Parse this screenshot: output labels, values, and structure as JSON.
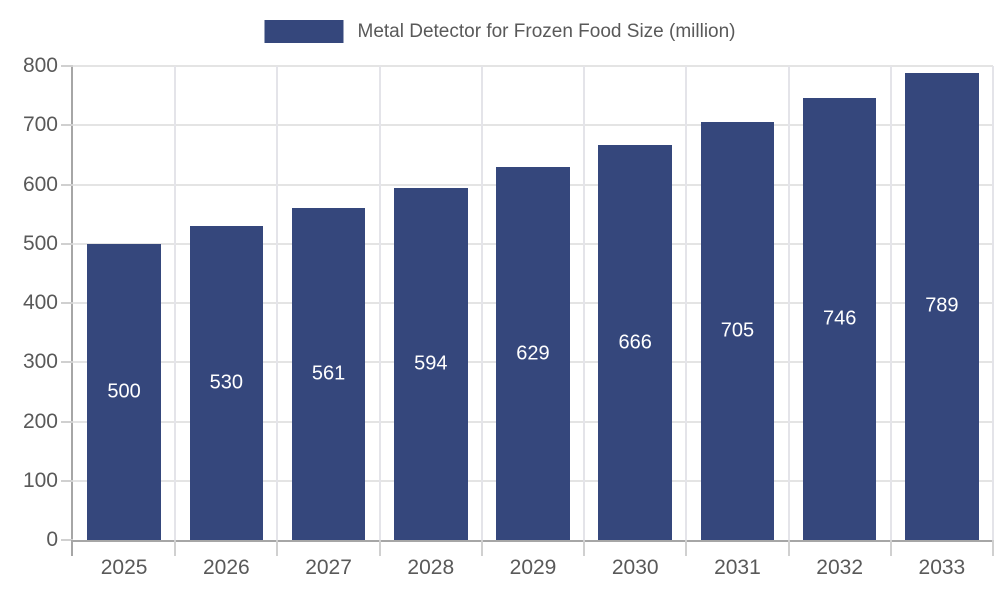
{
  "legend": {
    "label": "Metal Detector for Frozen Food Size (million)"
  },
  "chart_data": {
    "type": "bar",
    "title": "Metal Detector for Frozen Food Size (million)",
    "categories": [
      "2025",
      "2026",
      "2027",
      "2028",
      "2029",
      "2030",
      "2031",
      "2032",
      "2033"
    ],
    "values": [
      500,
      530,
      561,
      594,
      629,
      666,
      705,
      746,
      789
    ],
    "xlabel": "",
    "ylabel": "",
    "ylim": [
      0,
      800
    ],
    "yticks": [
      0,
      100,
      200,
      300,
      400,
      500,
      600,
      700,
      800
    ],
    "grid": true,
    "legend_position": "top-center",
    "value_labels": "centered-inside-bars",
    "colors": {
      "bar": "#35477C",
      "value_text": "#ffffff",
      "axis_text": "#595959",
      "axis_line": "#a6a6a6",
      "hgrid": "#e4e4e4",
      "vgrid": "#e4e4e9",
      "tick": "#d0d0d0",
      "background": "#ffffff"
    }
  }
}
